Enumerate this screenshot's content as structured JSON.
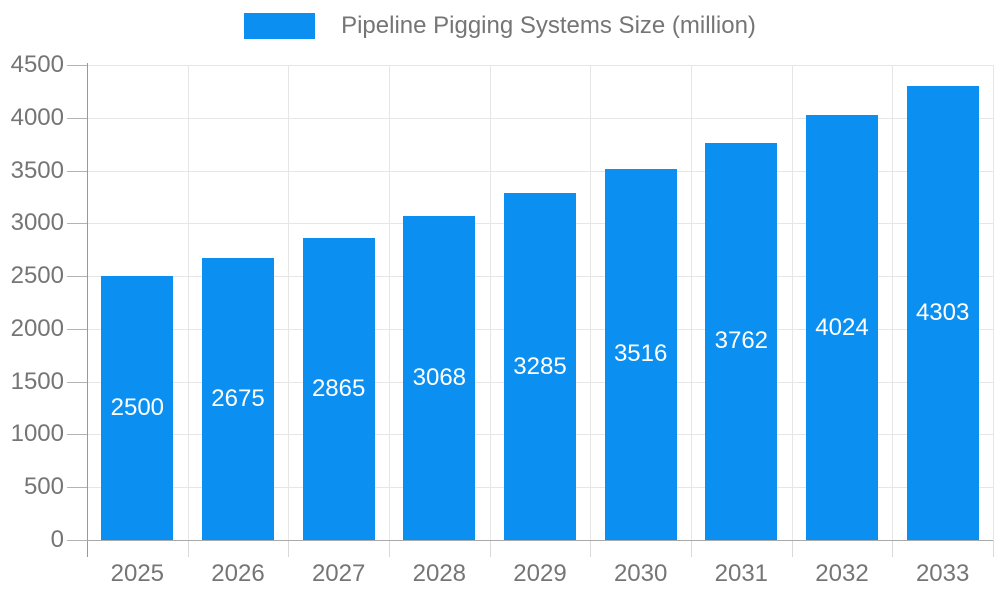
{
  "legend": {
    "label": "Pipeline Pigging Systems Size (million)"
  },
  "chart_data": {
    "type": "bar",
    "title": "",
    "categories": [
      "2025",
      "2026",
      "2027",
      "2028",
      "2029",
      "2030",
      "2031",
      "2032",
      "2033"
    ],
    "series": [
      {
        "name": "Pipeline Pigging Systems Size (million)",
        "values": [
          2500,
          2675,
          2865,
          3068,
          3285,
          3516,
          3762,
          4024,
          4303
        ],
        "color": "#0b90f2"
      }
    ],
    "xlabel": "",
    "ylabel": "",
    "ylim": [
      0,
      4500
    ],
    "ytick_step": 500,
    "yticks": [
      0,
      500,
      1000,
      1500,
      2000,
      2500,
      3000,
      3500,
      4000,
      4500
    ],
    "grid": true,
    "legend_position": "top-center",
    "value_labels": "inside-center",
    "value_label_color": "#ffffff",
    "axis_text_color": "#757575",
    "gridline_color": "#e6e6e6"
  }
}
